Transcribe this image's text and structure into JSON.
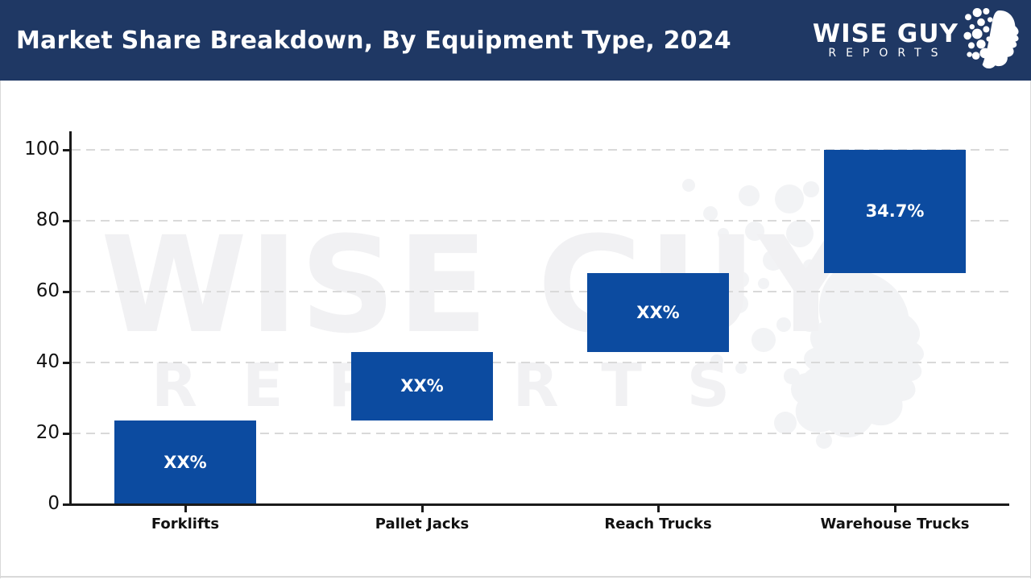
{
  "header": {
    "title": "Market Share Breakdown, By Equipment Type, 2024",
    "logo": {
      "line1": "WISE GUY",
      "line2": "REPORTS"
    }
  },
  "watermark": {
    "line1": "WISE GUY",
    "line2": "REPORTS"
  },
  "chart_data": {
    "type": "bar",
    "variant": "floating-waterfall",
    "title": "Market Share Breakdown, By Equipment Type, 2024",
    "categories": [
      "Forklifts",
      "Pallet Jacks",
      "Reach Trucks",
      "Warehouse Trucks"
    ],
    "series": [
      {
        "name": "Market share (%)",
        "segments": [
          {
            "category": "Forklifts",
            "start": 0,
            "end": 23.6,
            "label": "XX%"
          },
          {
            "category": "Pallet Jacks",
            "start": 23.6,
            "end": 43.0,
            "label": "XX%"
          },
          {
            "category": "Reach Trucks",
            "start": 43.0,
            "end": 65.3,
            "label": "XX%"
          },
          {
            "category": "Warehouse Trucks",
            "start": 65.3,
            "end": 100,
            "label": "34.7%"
          }
        ]
      }
    ],
    "xlabel": "",
    "ylabel": "",
    "ylim": [
      0,
      105
    ],
    "yticks": [
      0,
      20,
      40,
      60,
      80,
      100
    ],
    "grid": {
      "horizontal": true,
      "style": "dashed",
      "color": "#d9d9d9"
    },
    "legend": null,
    "colors": {
      "bar": "#0c4ba0",
      "bar_label": "#ffffff",
      "header_bg": "#1f3864",
      "axis": "#1a1a1a",
      "watermark": "#f1f1f3"
    }
  }
}
